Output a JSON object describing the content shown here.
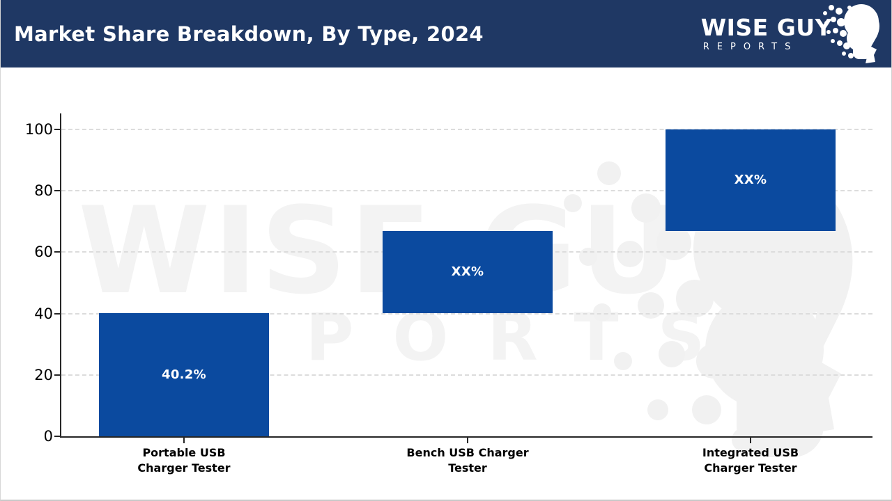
{
  "header": {
    "title": "Market Share Breakdown, By Type, 2024",
    "logo": {
      "primary": "WISE GUY",
      "secondary": "REPORTS"
    }
  },
  "watermark": {
    "primary": "WISE GUY",
    "secondary": "REPORTS"
  },
  "colors": {
    "header_bg": "#1f3864",
    "bar_fill": "#0b4a9f",
    "bar_label_text": "#ffffff",
    "gridline": "#dcdcdc",
    "axis": "#262626",
    "watermark": "#f3f3f3"
  },
  "chart_data": {
    "type": "bar",
    "subtype": "floating-segment-waterfall",
    "title": "Market Share Breakdown, By Type, 2024",
    "categories": [
      "Portable USB\nCharger Tester",
      "Bench USB Charger\nTester",
      "Integrated USB\nCharger Tester"
    ],
    "segments": [
      {
        "name": "Portable USB Charger Tester",
        "start": 0,
        "end": 40.2,
        "label": "40.2%"
      },
      {
        "name": "Bench USB Charger Tester",
        "start": 40.2,
        "end": 66.9,
        "label": "XX%"
      },
      {
        "name": "Integrated USB Charger Tester",
        "start": 66.9,
        "end": 100,
        "label": "XX%"
      }
    ],
    "yticks": [
      0,
      20,
      40,
      60,
      80,
      100
    ],
    "ylim": [
      0,
      100
    ],
    "grid": "dashed-horizontal",
    "legend": "none",
    "bar_color": "#0b4a9f"
  }
}
